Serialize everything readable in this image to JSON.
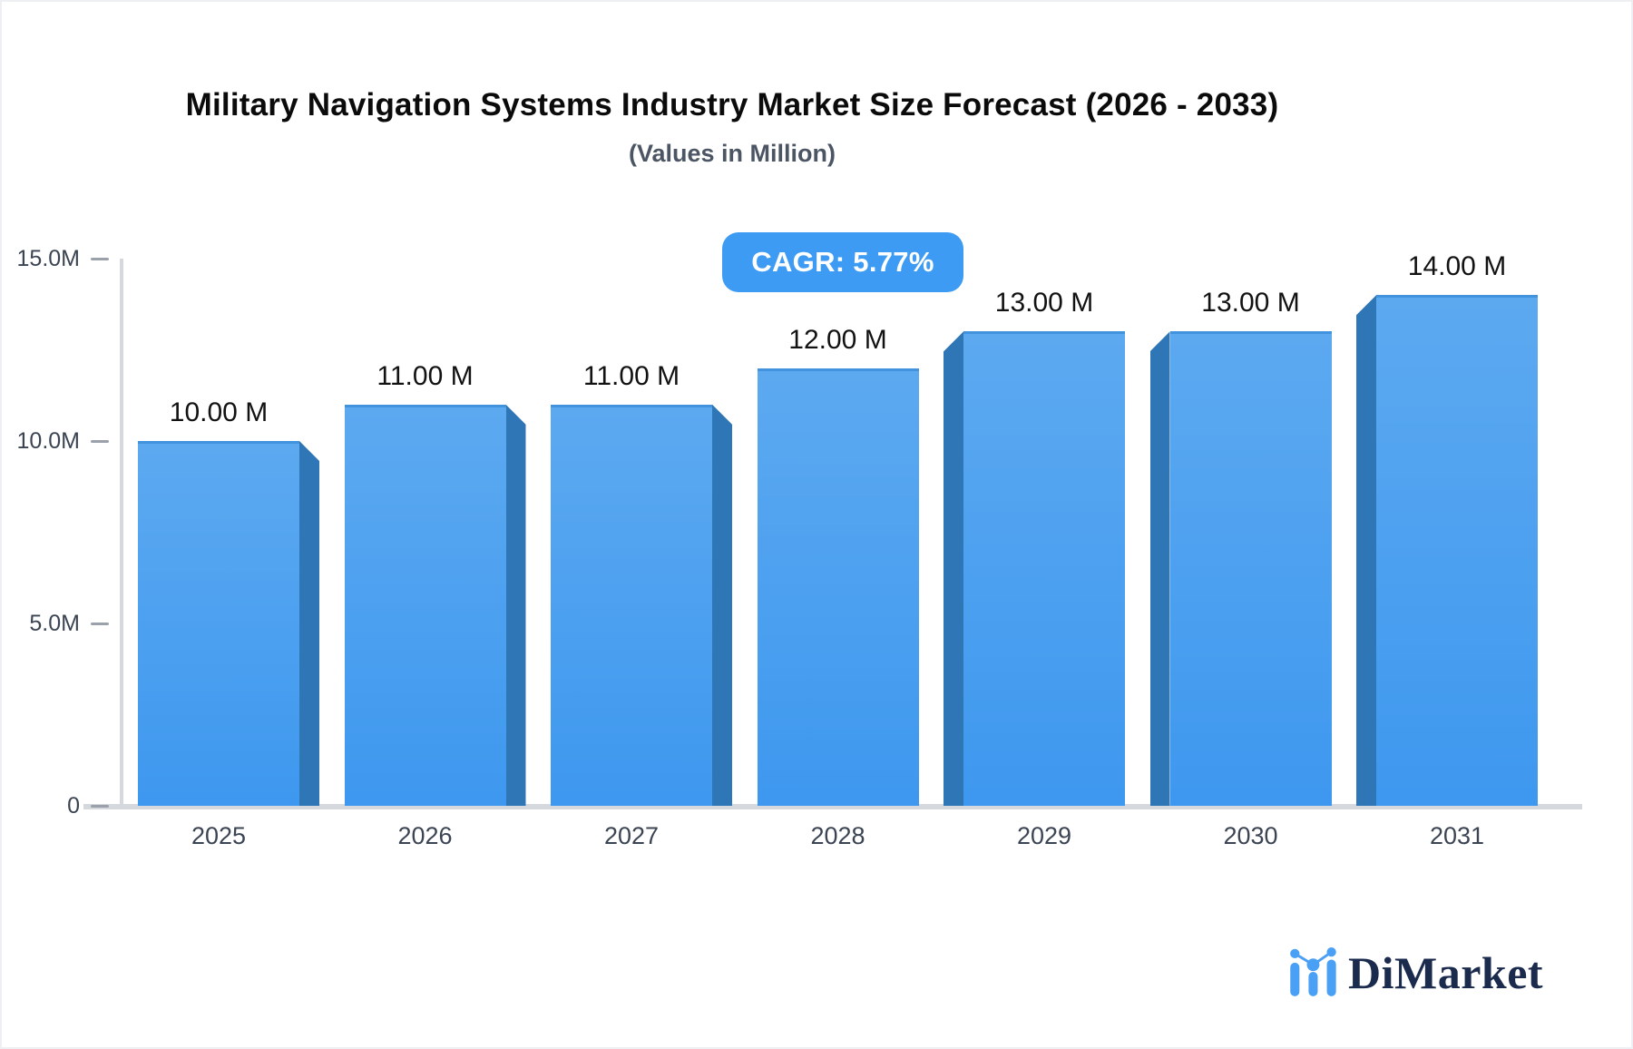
{
  "header": {
    "title": "Military Navigation Systems Industry Market Size Forecast (2026 - 2033)",
    "subtitle": "(Values in Million)"
  },
  "cagr_badge": {
    "label": "CAGR: 5.77%"
  },
  "chart_data": {
    "type": "bar",
    "title": "Military Navigation Systems Industry Market Size Forecast (2026 - 2033)",
    "subtitle": "(Values in Million)",
    "unit": "Million",
    "categories": [
      "2025",
      "2026",
      "2027",
      "2028",
      "2029",
      "2030",
      "2031"
    ],
    "values": [
      10,
      11,
      11,
      12,
      13,
      13,
      14
    ],
    "value_labels": [
      "10.00 M",
      "11.00 M",
      "11.00 M",
      "12.00 M",
      "13.00 M",
      "13.00 M",
      "14.00 M"
    ],
    "ylim": [
      0,
      15
    ],
    "yticks": [
      {
        "value": 0,
        "label": "0"
      },
      {
        "value": 5,
        "label": "5.0M"
      },
      {
        "value": 10,
        "label": "10.0M"
      },
      {
        "value": 15,
        "label": "15.0M"
      }
    ],
    "grid": false,
    "legend": false,
    "cagr": "5.77%",
    "bar_style": "3d-perspective",
    "xlabel": "",
    "ylabel": ""
  },
  "footer": {
    "brand": "DiMarket",
    "logo_icon": "bar-chart-logo-icon"
  },
  "colors": {
    "background": "#FFFFFF",
    "bar_face_top": "#5CA9F0",
    "bar_face_bottom": "#3E98EF",
    "bar_top_edge": "#4193DE",
    "bar_side": "#2F76B6",
    "badge_bg": "#3D9BF3",
    "badge_text": "#FFFFFF",
    "axis_line": "#D5D8DD",
    "tick_text": "#3B4452",
    "title_text": "#0B0B0C",
    "subtitle_text": "#4B5563",
    "value_label_text": "#121212",
    "logo_navy": "#1B2B4D",
    "logo_blue": "#4AA0F5"
  }
}
